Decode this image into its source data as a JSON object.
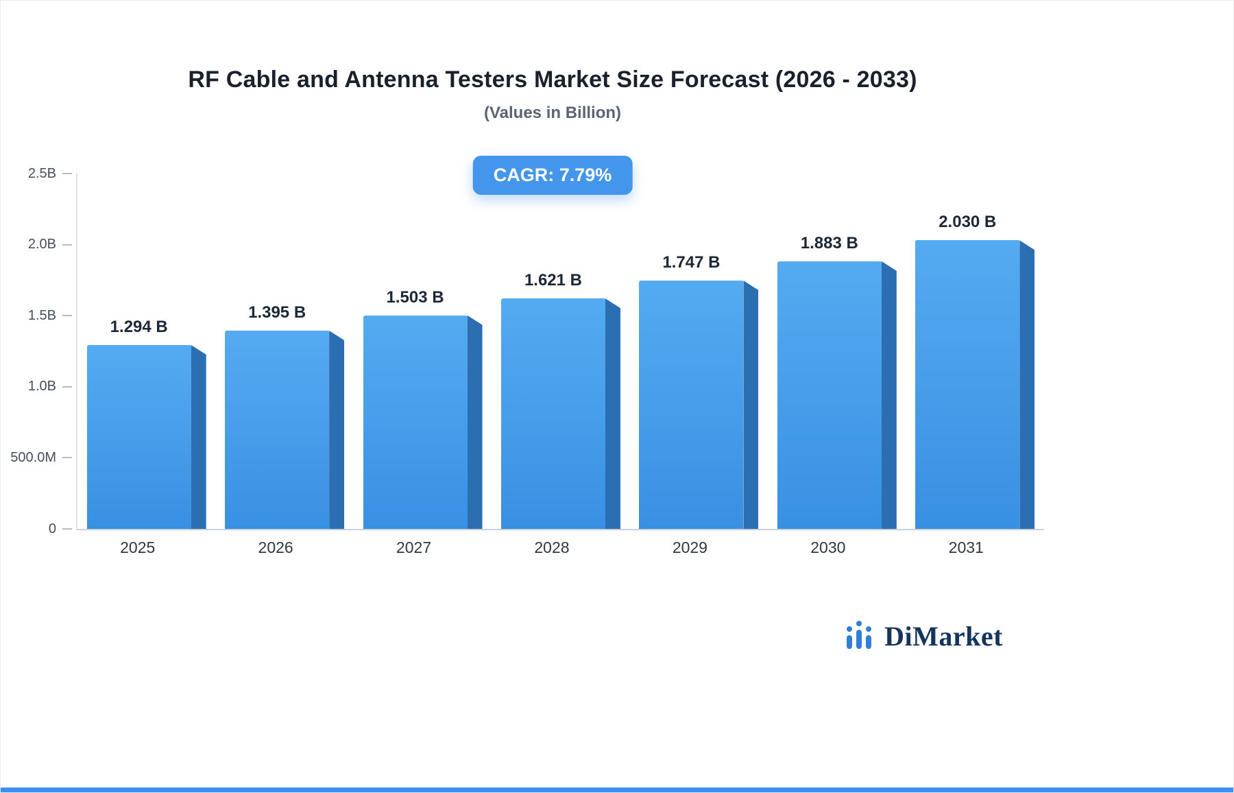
{
  "page": {
    "brand": {
      "name": "DiMarket",
      "icon": "bar-chart-icon"
    },
    "colors": {
      "badge": "#4496ec",
      "bar_top": "#55abf0",
      "bar_bottom": "#3990e3",
      "bar_side": "#2b6fb2",
      "accent_strip": "#3e8ef7",
      "logo_text": "#16355e"
    }
  },
  "chart_data": {
    "type": "bar",
    "title": "RF Cable and Antenna Testers Market Size Forecast (2026 - 2033)",
    "subtitle": "(Values in Billion)",
    "annotation": "CAGR: 7.79%",
    "categories": [
      "2025",
      "2026",
      "2027",
      "2028",
      "2029",
      "2030",
      "2031"
    ],
    "values": [
      1.294,
      1.395,
      1.503,
      1.621,
      1.747,
      1.883,
      2.03
    ],
    "value_labels": [
      "1.294 B",
      "1.395 B",
      "1.503 B",
      "1.621 B",
      "1.747 B",
      "1.883 B",
      "2.030 B"
    ],
    "unit": "Billion",
    "xlabel": "",
    "ylabel": "",
    "ylim": [
      0,
      2.5
    ],
    "y_ticks": [
      {
        "label": "2.5B",
        "value": 2.5
      },
      {
        "label": "2.0B",
        "value": 2.0
      },
      {
        "label": "1.5B",
        "value": 1.5
      },
      {
        "label": "1.0B",
        "value": 1.0
      },
      {
        "label": "500.0M",
        "value": 0.5
      },
      {
        "label": "0",
        "value": 0
      }
    ],
    "grid": "off",
    "legend": "none"
  }
}
